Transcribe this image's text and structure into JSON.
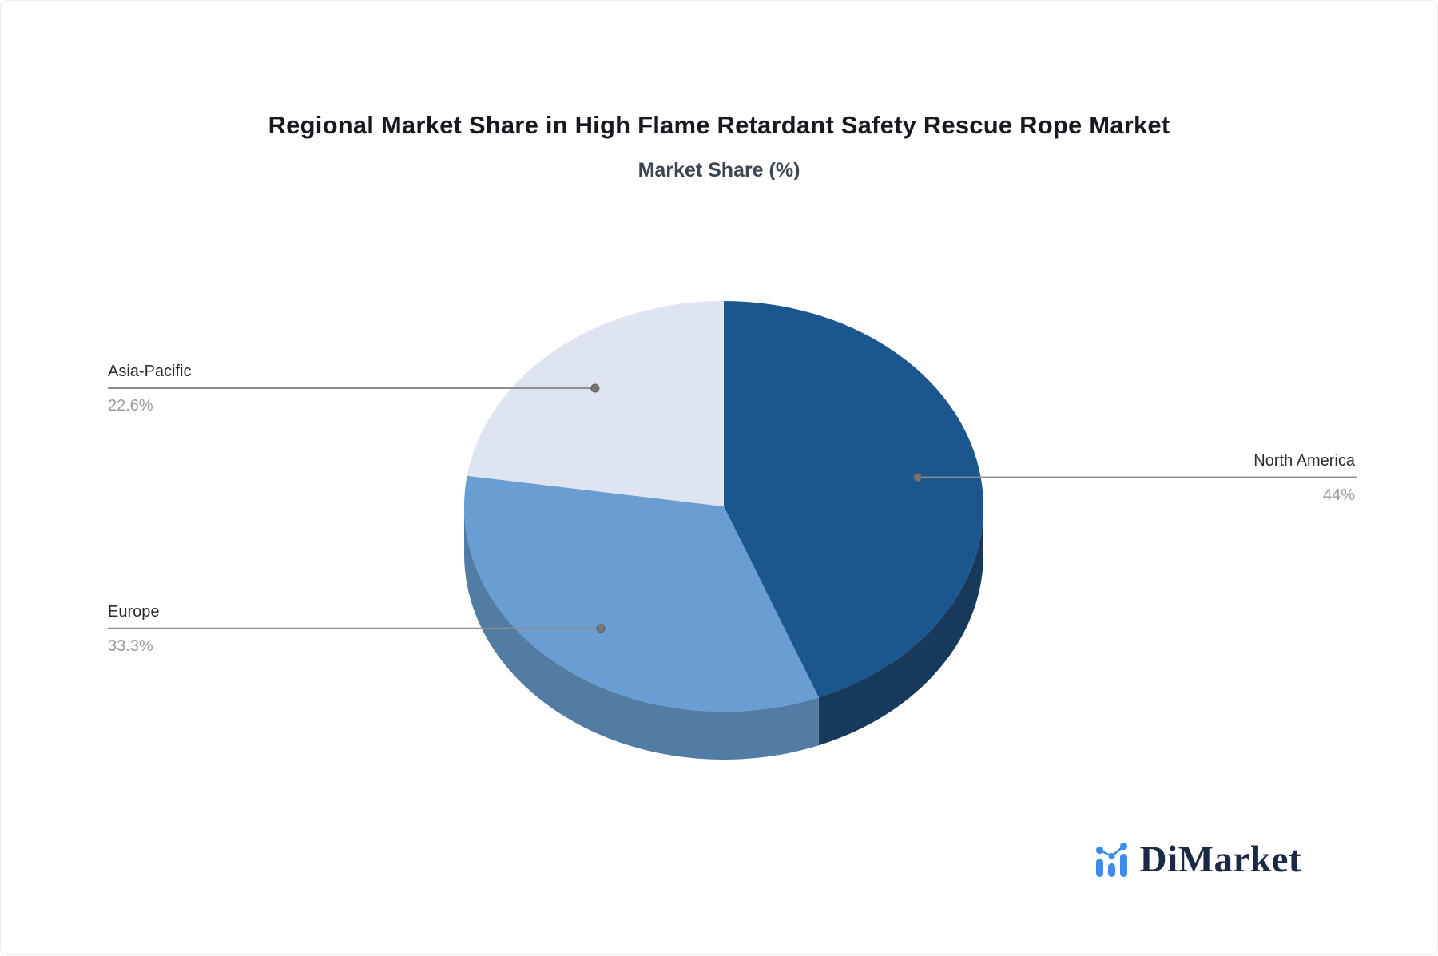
{
  "chart_data": {
    "type": "pie",
    "style": "3d",
    "title": "Regional Market Share in High Flame Retardant Safety Rescue Rope Market",
    "subtitle": "Market Share (%)",
    "unit": "%",
    "start_angle_deg": 0,
    "direction": "clockwise",
    "slices": [
      {
        "label": "North America",
        "value": 44,
        "display_value": "44%",
        "color": "#1b568e",
        "side_color": "#17395c",
        "label_side": "right"
      },
      {
        "label": "Europe",
        "value": 33.3,
        "display_value": "33.3%",
        "color": "#6a9ed3",
        "side_color": "#527ca3",
        "label_side": "left"
      },
      {
        "label": "Asia-Pacific",
        "value": 22.6,
        "display_value": "22.6%",
        "color": "#dee4f0",
        "side_color": "#b6c2d4",
        "label_side": "left"
      }
    ],
    "legend_position": "none",
    "labels": "leader-lines",
    "leader_line_color": "#8d8d8d",
    "leader_dot_color": "#757575",
    "label_name_color": "#2b2b2b",
    "label_value_color": "#9a9a9a",
    "title_color": "#16191f",
    "subtitle_color": "#3d4551"
  },
  "branding": {
    "name": "DiMarket",
    "icon": "bar-line-chart-icon",
    "icon_color": "#3d8bf2",
    "text_color": "#1b2944"
  }
}
